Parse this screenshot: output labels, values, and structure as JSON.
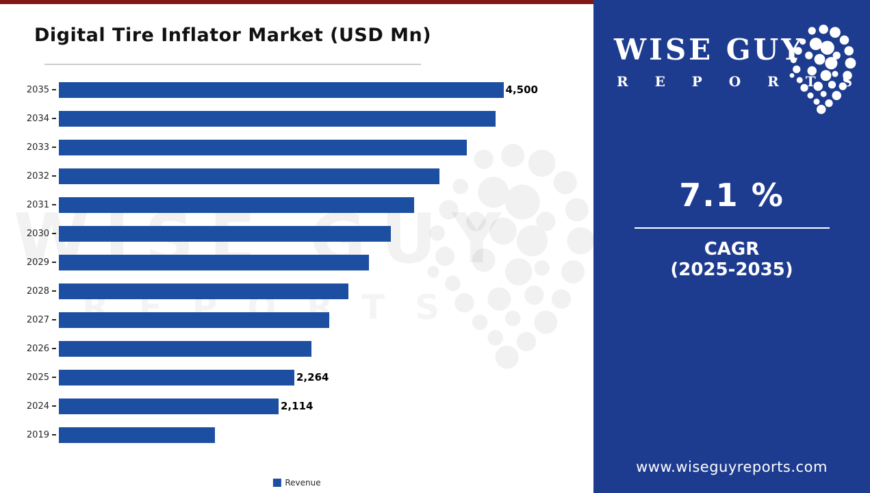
{
  "title": "Digital Tire Inflator Market (USD Mn)",
  "legend": {
    "label": "Revenue"
  },
  "watermark": {
    "line1": "WISE GUY",
    "line2": "REPORTS"
  },
  "chart_data": {
    "type": "bar",
    "orientation": "horizontal",
    "title": "Digital Tire Inflator Market (USD Mn)",
    "xlabel": "",
    "ylabel": "",
    "xlim": [
      0,
      4500
    ],
    "grid": false,
    "legend_position": "bottom-center",
    "legend_entries": [
      "Revenue"
    ],
    "categories": [
      "2035",
      "2034",
      "2033",
      "2032",
      "2031",
      "2030",
      "2029",
      "2028",
      "2027",
      "2026",
      "2025",
      "2024",
      "2019"
    ],
    "values": [
      4500,
      4197,
      3919,
      3659,
      3417,
      3190,
      2979,
      2781,
      2597,
      2425,
      2264,
      2114,
      1500
    ],
    "value_labels": {
      "2035": "4,500",
      "2025": "2,264",
      "2024": "2,114"
    },
    "bar_color": "#1c4fa1"
  },
  "colors": {
    "bar": "#1c4fa1",
    "sidebar_background": "#1e3c8f",
    "top_strip": "#801818",
    "title_text": "#111111"
  },
  "sidebar": {
    "logo_line1": "WISE GUY",
    "logo_line2": "R E P O R T S",
    "cagr_value": "7.1 %",
    "cagr_label_line1": "CAGR",
    "cagr_label_line2": "(2025-2035)",
    "website": "www.wiseguyreports.com"
  }
}
